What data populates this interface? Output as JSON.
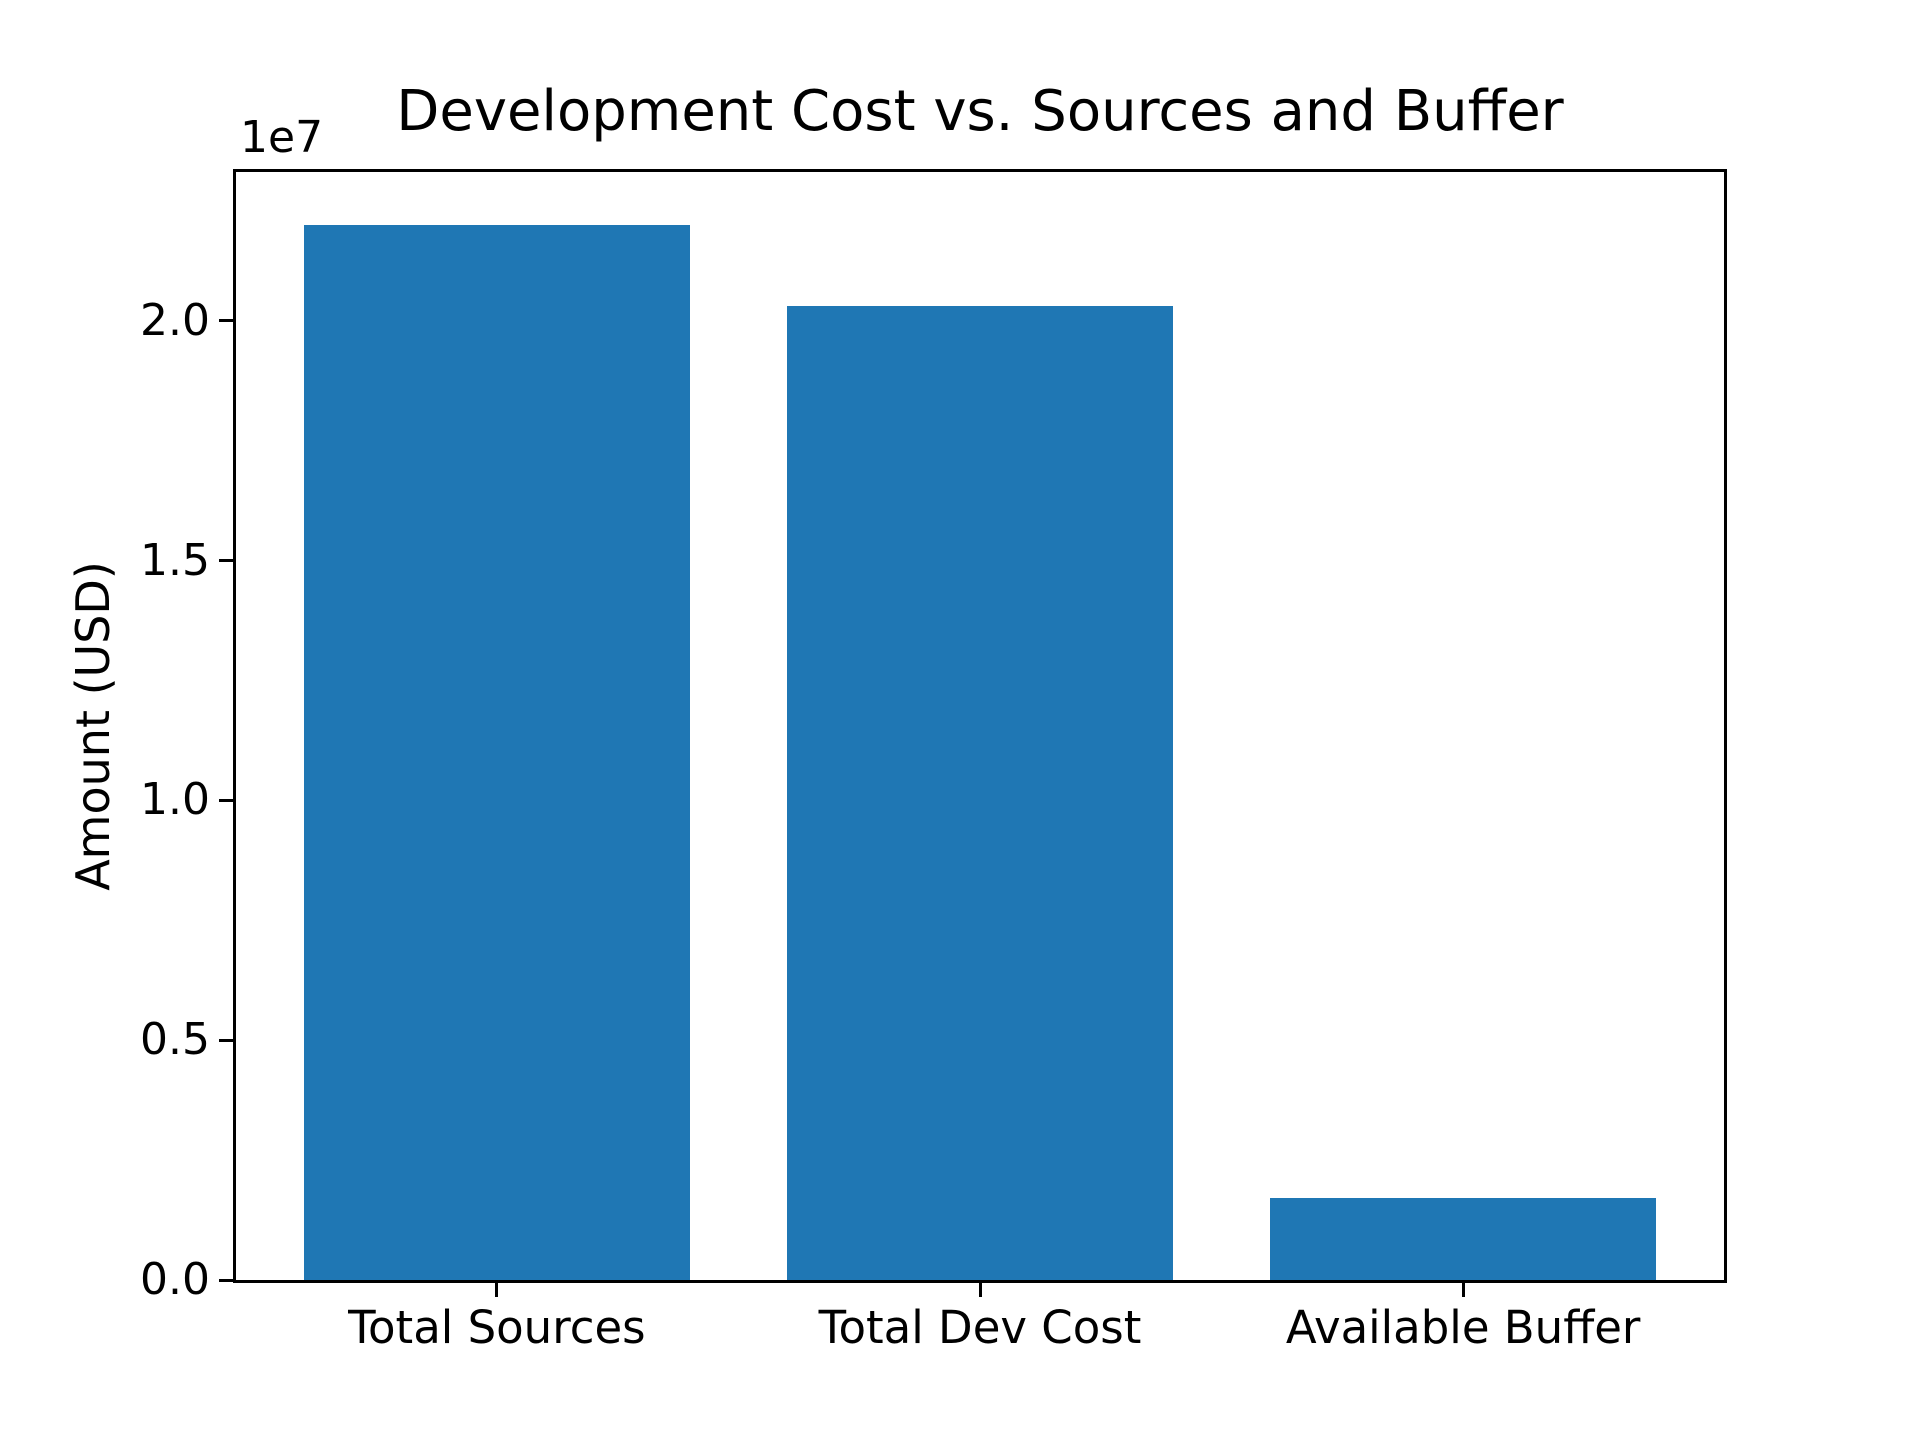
{
  "chart_data": {
    "type": "bar",
    "title": "Development Cost vs. Sources and Buffer",
    "xlabel": "",
    "ylabel": "Amount (USD)",
    "categories": [
      "Total Sources",
      "Total Dev Cost",
      "Available Buffer"
    ],
    "values": [
      22000000,
      20300000,
      1700000
    ],
    "ylim": [
      0,
      23100000
    ],
    "ytick_values": [
      0,
      5000000,
      10000000,
      15000000,
      20000000
    ],
    "ytick_labels": [
      "0.0",
      "0.5",
      "1.0",
      "1.5",
      "2.0"
    ],
    "y_offset_text": "1e7",
    "bar_color": "#1f77b4",
    "axis_color": "#000000",
    "text_color": "#000000",
    "background_color": "#ffffff",
    "grid": false,
    "legend": false
  }
}
